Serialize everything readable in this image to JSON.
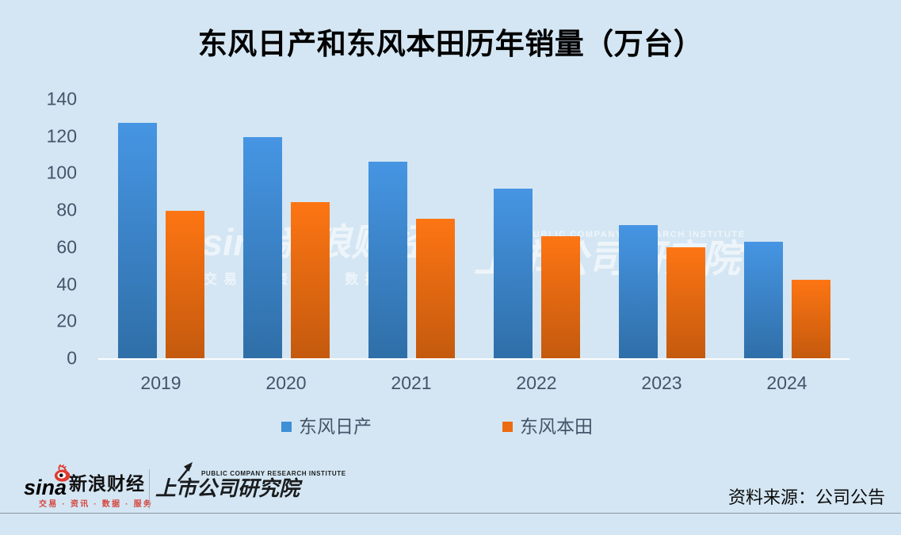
{
  "chart_data": {
    "type": "bar",
    "title": "东风日产和东风本田历年销量（万台）",
    "categories": [
      "2019",
      "2020",
      "2021",
      "2022",
      "2023",
      "2024"
    ],
    "series": [
      {
        "name": "东风日产",
        "key": "dongfeng-nissan",
        "values": [
          127.3,
          119.6,
          106.2,
          91.5,
          72.0,
          62.8
        ],
        "gradient_top": "#4695e3",
        "gradient_bottom": "#2f6fa8",
        "legend_color": "#3d8fd6"
      },
      {
        "name": "东风本田",
        "key": "dongfeng-honda",
        "values": [
          79.7,
          84.5,
          75.5,
          65.8,
          60.1,
          42.5
        ],
        "gradient_top": "#fd7513",
        "gradient_bottom": "#c45a0e",
        "legend_color": "#eb6c10"
      }
    ],
    "xlabel": "",
    "ylabel": "",
    "unit": "万台",
    "ylim": [
      0,
      140
    ],
    "yticks": [
      0,
      20,
      40,
      60,
      80,
      100,
      120,
      140
    ],
    "grid": false,
    "legend_position": "bottom"
  },
  "watermarks": {
    "left": {
      "brand": "sina新浪财经",
      "tagline": "交易 · 资讯 · 数据 · 服务"
    },
    "right": {
      "subtitle": "PUBLIC COMPANY RESEARCH INSTITUTE",
      "brand": "上市公司研究院"
    }
  },
  "footer": {
    "sina": {
      "wordmark": "sina",
      "cn_name": "新浪财经",
      "tagline": "交易 · 资讯 · 数据 · 服务"
    },
    "pcri": {
      "subtitle": "PUBLIC COMPANY RESEARCH INSTITUTE",
      "name": "上市公司研究院"
    },
    "source": "资料来源：公司公告"
  },
  "colors": {
    "background": "#d4e6f3",
    "axis_text": "#44546a",
    "title_text": "#000000",
    "baseline": "#ffffff",
    "sina_red": "#d6453f",
    "footer_rule": "#8d959c"
  }
}
